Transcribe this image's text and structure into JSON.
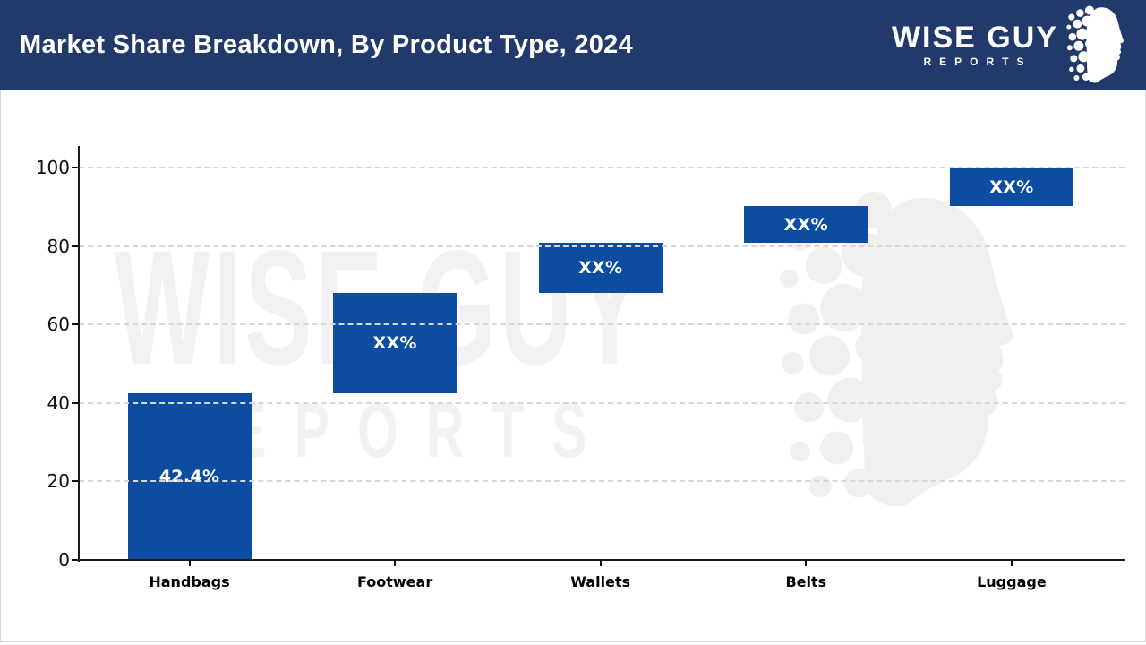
{
  "header": {
    "title": "Market Share Breakdown, By Product Type, 2024",
    "logo": {
      "line1": "WISE GUY",
      "line2": "REPORTS",
      "head_icon": "dotted-head-profile"
    }
  },
  "watermark": {
    "line1": "WISE GUY",
    "line2": "REPORTS",
    "head_icon": "dotted-head-profile"
  },
  "colors": {
    "header_bg": "#223A6B",
    "bar": "#0C4DA2",
    "bar_label": "#FFFFFF",
    "gridline": "#D7D7D7",
    "axis": "#1A1A1A",
    "watermark": "#F2F2F2"
  },
  "chart_data": {
    "type": "bar",
    "variant": "waterfall-stepped",
    "title": "Market Share Breakdown, By Product Type, 2024",
    "categories": [
      "Handbags",
      "Footwear",
      "Wallets",
      "Belts",
      "Luggage"
    ],
    "segments": [
      {
        "category": "Handbags",
        "start": 0,
        "end": 42.4,
        "label": "42.4%"
      },
      {
        "category": "Footwear",
        "start": 42.4,
        "end": 68.0,
        "label": "XX%"
      },
      {
        "category": "Wallets",
        "start": 68.0,
        "end": 80.8,
        "label": "XX%"
      },
      {
        "category": "Belts",
        "start": 80.8,
        "end": 90.2,
        "label": "XX%"
      },
      {
        "category": "Luggage",
        "start": 90.2,
        "end": 100.0,
        "label": "XX%"
      }
    ],
    "yticks": [
      0,
      20,
      40,
      60,
      80,
      100
    ],
    "ylim": [
      0,
      105.5
    ],
    "xlabel": "",
    "ylabel": "",
    "grid": "horizontal-dashed-above-bars",
    "legend": "none"
  }
}
